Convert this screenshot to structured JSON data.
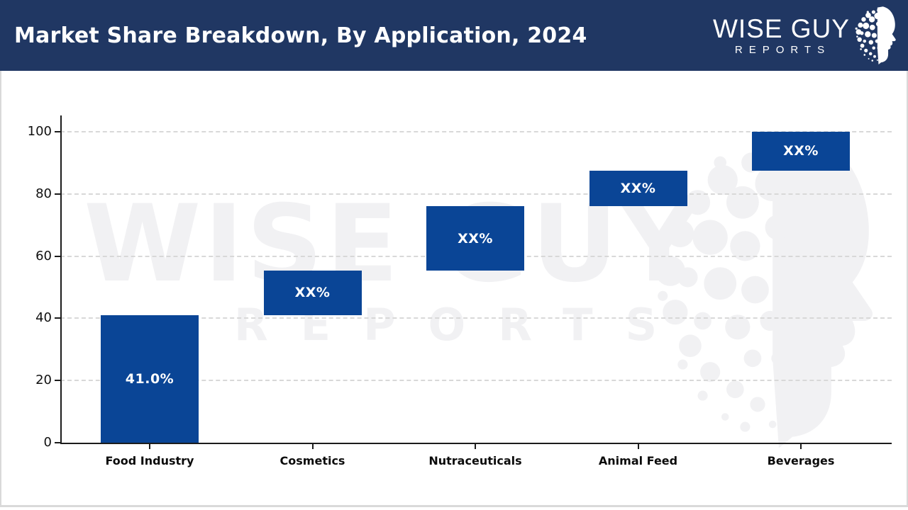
{
  "header": {
    "title": "Market Share Breakdown, By Application, 2024",
    "logo": {
      "line1": "WISE GUY",
      "line2": "REPORTS"
    },
    "bg_color": "#203763"
  },
  "watermark": {
    "line1": "WISE GUY",
    "line2": "REPORTS"
  },
  "chart_data": {
    "type": "bar",
    "variant": "waterfall-stacked-market-share",
    "title": "Market Share Breakdown, By Application, 2024",
    "categories": [
      "Food Industry",
      "Cosmetics",
      "Nutraceuticals",
      "Animal Feed",
      "Beverages"
    ],
    "series": [
      {
        "name": "Market share (%)",
        "segments": [
          {
            "category": "Food Industry",
            "start": 0,
            "end": 41,
            "label": "41.0%"
          },
          {
            "category": "Cosmetics",
            "start": 41,
            "end": 55.4,
            "label": "XX%"
          },
          {
            "category": "Nutraceuticals",
            "start": 55.4,
            "end": 76,
            "label": "XX%"
          },
          {
            "category": "Animal Feed",
            "start": 76,
            "end": 87.5,
            "label": "XX%"
          },
          {
            "category": "Beverages",
            "start": 87.5,
            "end": 100,
            "label": "XX%"
          }
        ]
      }
    ],
    "value_labels": [
      "41.0%",
      "XX%",
      "XX%",
      "XX%",
      "XX%"
    ],
    "yticks": [
      0,
      20,
      40,
      60,
      80,
      100
    ],
    "ylim": [
      0,
      105
    ],
    "xlabel": "",
    "ylabel": "",
    "bar_color": "#0A4596",
    "grid": "horizontal-dashed",
    "gridline_color": "#d8d8d8",
    "legend": "none"
  }
}
